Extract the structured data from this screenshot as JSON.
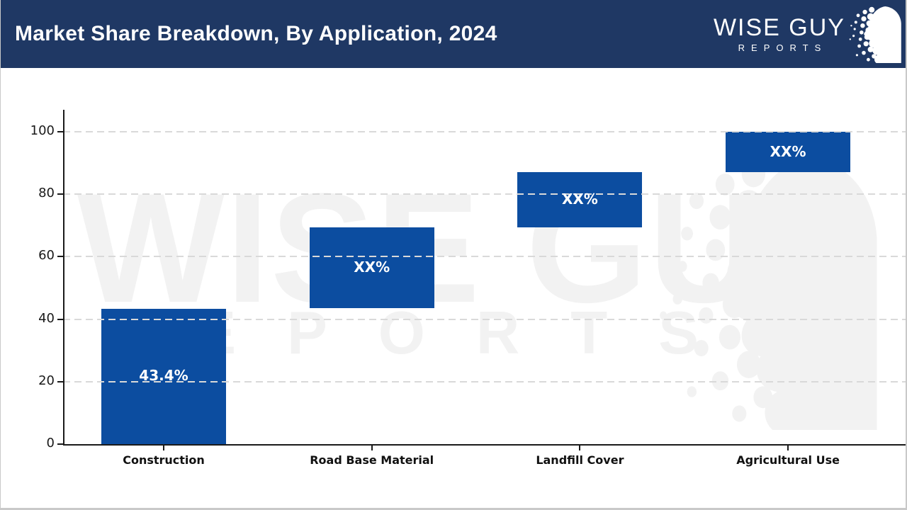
{
  "page": {
    "background": "#ffffff",
    "border_color": "#c9c9c9"
  },
  "header": {
    "background": "#1f3864",
    "title": "Market Share Breakdown, By Application, 2024",
    "logo": {
      "line1": "WISE GUY",
      "line2": "REPORTS",
      "icon": "dotted-face-profile-icon",
      "color": "#ffffff"
    }
  },
  "watermark": {
    "line1": "WISE GUY",
    "line2": "REPORTS",
    "icon": "dotted-face-profile-icon",
    "color": "#f2f2f2"
  },
  "chart_data": {
    "type": "bar",
    "subtype": "waterfall-range-bars",
    "title": "Market Share Breakdown, By Application, 2024",
    "xlabel": "",
    "ylabel": "",
    "categories": [
      "Construction",
      "Road Base Material",
      "Landfill Cover",
      "Agricultural Use"
    ],
    "segments": [
      {
        "category": "Construction",
        "start": 0,
        "end": 43.4,
        "label": "43.4%"
      },
      {
        "category": "Road Base Material",
        "start": 43.5,
        "end": 69.4,
        "label": "XX%"
      },
      {
        "category": "Landfill Cover",
        "start": 69.5,
        "end": 87.0,
        "label": "XX%"
      },
      {
        "category": "Agricultural Use",
        "start": 87.0,
        "end": 100.0,
        "label": "XX%"
      }
    ],
    "ylim": [
      0,
      100
    ],
    "yticks": [
      0,
      20,
      40,
      60,
      80,
      100
    ],
    "grid": "horizontal-dashed",
    "legend": "none",
    "bar_color": "#0c4da0",
    "bar_label_color": "#ffffff",
    "gridline_color": "#d9d9d9",
    "axis_color": "#1a1a1a",
    "tick_label_color": "#1a1a1a"
  }
}
